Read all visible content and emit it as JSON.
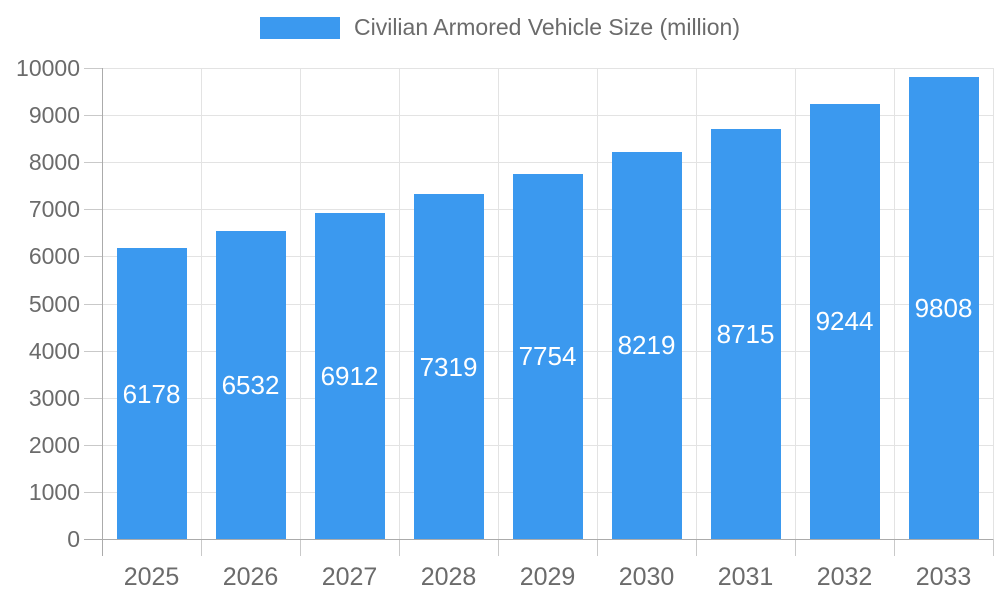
{
  "legend": {
    "label": "Civilian Armored Vehicle Size (million)"
  },
  "chart_data": {
    "type": "bar",
    "title": "Civilian Armored Vehicle Size (million)",
    "categories": [
      "2025",
      "2026",
      "2027",
      "2028",
      "2029",
      "2030",
      "2031",
      "2032",
      "2033"
    ],
    "values": [
      6178,
      6532,
      6912,
      7319,
      7754,
      8219,
      8715,
      9244,
      9808
    ],
    "xlabel": "",
    "ylabel": "",
    "ylim": [
      0,
      10000
    ],
    "ytick_step": 1000,
    "grid": true,
    "legend_position": "top",
    "bar_labels_inside": true
  },
  "colors": {
    "bar": "#3b99ef",
    "bar_label": "#ffffff",
    "axis_text": "#6b6b6b",
    "grid_line": "#e3e3e3",
    "axis_line": "#ababab",
    "tick_line": "#c9c9c9",
    "background": "#ffffff"
  }
}
